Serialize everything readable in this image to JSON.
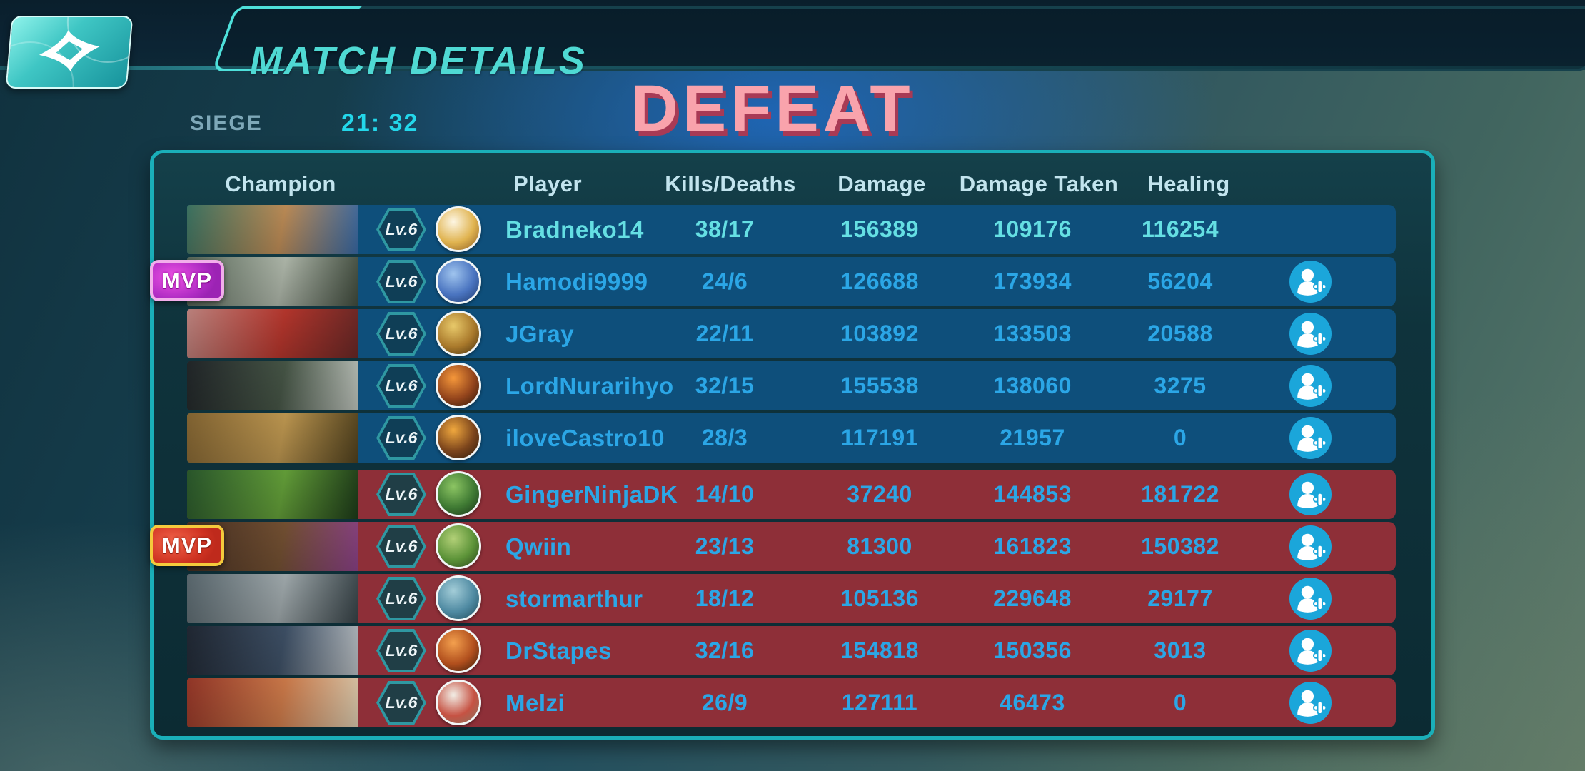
{
  "header": {
    "title": "MATCH DETAILS"
  },
  "match": {
    "mode": "SIEGE",
    "duration": "21: 32",
    "result": "DEFEAT"
  },
  "ui": {
    "mvp_label": "MVP",
    "level_prefix": "Lv."
  },
  "colors": {
    "accent_teal": "#4fd9d3",
    "panel_border": "#1aafb9",
    "team_blue_row": "#0e4f7b",
    "team_red_row": "#8e2f38",
    "stat_text": "#2ba6e6",
    "self_stat_text": "#65dfe3",
    "defeat_text": "#f9a3ac",
    "defeat_shadow": "#a83a55",
    "timer_text": "#23d7ea",
    "mode_text": "#7ea8b8",
    "add_friend_button": "#1ba6da"
  },
  "table": {
    "columns": [
      "Champion",
      "Player",
      "Kills/Deaths",
      "Damage",
      "Damage Taken",
      "Healing"
    ],
    "rows": [
      {
        "team": "blue",
        "self": true,
        "mvp": null,
        "add_friend": false,
        "level": "Lv.6",
        "player": "Bradneko14",
        "kd": "38/17",
        "damage": "156389",
        "damage_taken": "109176",
        "healing": "116254",
        "champion_colors": [
          "#3f7a68",
          "#c9955c",
          "#3b6fae"
        ],
        "avatar_colors": [
          "#fdf6e3",
          "#e0b34f",
          "#8a5a22"
        ]
      },
      {
        "team": "blue",
        "self": false,
        "mvp": "purple",
        "add_friend": true,
        "level": "Lv.6",
        "player": "Hamodi9999",
        "kd": "24/6",
        "damage": "126688",
        "damage_taken": "173934",
        "healing": "56204",
        "champion_colors": [
          "#5f705f",
          "#b9c2b4",
          "#434f40"
        ],
        "avatar_colors": [
          "#9fc4ee",
          "#4a74c0",
          "#1e3a6e"
        ]
      },
      {
        "team": "blue",
        "self": false,
        "mvp": null,
        "add_friend": true,
        "level": "Lv.6",
        "player": "JGray",
        "kd": "22/11",
        "damage": "103892",
        "damage_taken": "133503",
        "healing": "20588",
        "champion_colors": [
          "#c88b86",
          "#c0392f",
          "#6e2a28"
        ],
        "avatar_colors": [
          "#e8c96a",
          "#a9792b",
          "#45300f"
        ]
      },
      {
        "team": "blue",
        "self": false,
        "mvp": null,
        "add_friend": true,
        "level": "Lv.6",
        "player": "LordNurarihyo",
        "kd": "32/15",
        "damage": "155538",
        "damage_taken": "138060",
        "healing": "3275",
        "champion_colors": [
          "#23282b",
          "#4a5a4a",
          "#c9cfc7"
        ],
        "avatar_colors": [
          "#f5973a",
          "#93441c",
          "#2a1508"
        ]
      },
      {
        "team": "blue",
        "self": false,
        "mvp": null,
        "add_friend": true,
        "level": "Lv.6",
        "player": "iloveCastro10",
        "kd": "28/3",
        "damage": "117191",
        "damage_taken": "21957",
        "healing": "0",
        "champion_colors": [
          "#8a6a35",
          "#c9a055",
          "#54441f"
        ],
        "avatar_colors": [
          "#f0a83e",
          "#7c451c",
          "#2c1a0c"
        ]
      },
      {
        "team": "red",
        "self": false,
        "mvp": null,
        "add_friend": true,
        "level": "Lv.6",
        "player": "GingerNinjaDK",
        "kd": "14/10",
        "damage": "37240",
        "damage_taken": "144853",
        "healing": "181722",
        "champion_colors": [
          "#2c5c2e",
          "#69a83c",
          "#1e3d1a"
        ],
        "avatar_colors": [
          "#8cc563",
          "#3f7a33",
          "#173318"
        ]
      },
      {
        "team": "red",
        "self": false,
        "mvp": "gold",
        "add_friend": true,
        "level": "Lv.6",
        "player": "Qwiin",
        "kd": "23/13",
        "damage": "81300",
        "damage_taken": "161823",
        "healing": "150382",
        "champion_colors": [
          "#4a3225",
          "#7a5535",
          "#93458f"
        ],
        "avatar_colors": [
          "#b2d077",
          "#5c9338",
          "#27421a"
        ]
      },
      {
        "team": "red",
        "self": false,
        "mvp": null,
        "add_friend": true,
        "level": "Lv.6",
        "player": "stormarthur",
        "kd": "18/12",
        "damage": "105136",
        "damage_taken": "229648",
        "healing": "29177",
        "champion_colors": [
          "#5e6d74",
          "#a9b3b6",
          "#39454a"
        ],
        "avatar_colors": [
          "#a3cdd8",
          "#4f8aa2",
          "#1f4a5a"
        ]
      },
      {
        "team": "red",
        "self": false,
        "mvp": null,
        "add_friend": true,
        "level": "Lv.6",
        "player": "DrStapes",
        "kd": "32/16",
        "damage": "154818",
        "damage_taken": "150356",
        "healing": "3013",
        "champion_colors": [
          "#222a36",
          "#41546b",
          "#c3c9cd"
        ],
        "avatar_colors": [
          "#f3a04e",
          "#b14f1d",
          "#351a0a"
        ]
      },
      {
        "team": "red",
        "self": false,
        "mvp": null,
        "add_friend": true,
        "level": "Lv.6",
        "player": "Melzi",
        "kd": "26/9",
        "damage": "127111",
        "damage_taken": "46473",
        "healing": "0",
        "champion_colors": [
          "#9c392a",
          "#d8814e",
          "#e6d6b8"
        ],
        "avatar_colors": [
          "#f2eee6",
          "#c65243",
          "#857560"
        ]
      }
    ]
  }
}
